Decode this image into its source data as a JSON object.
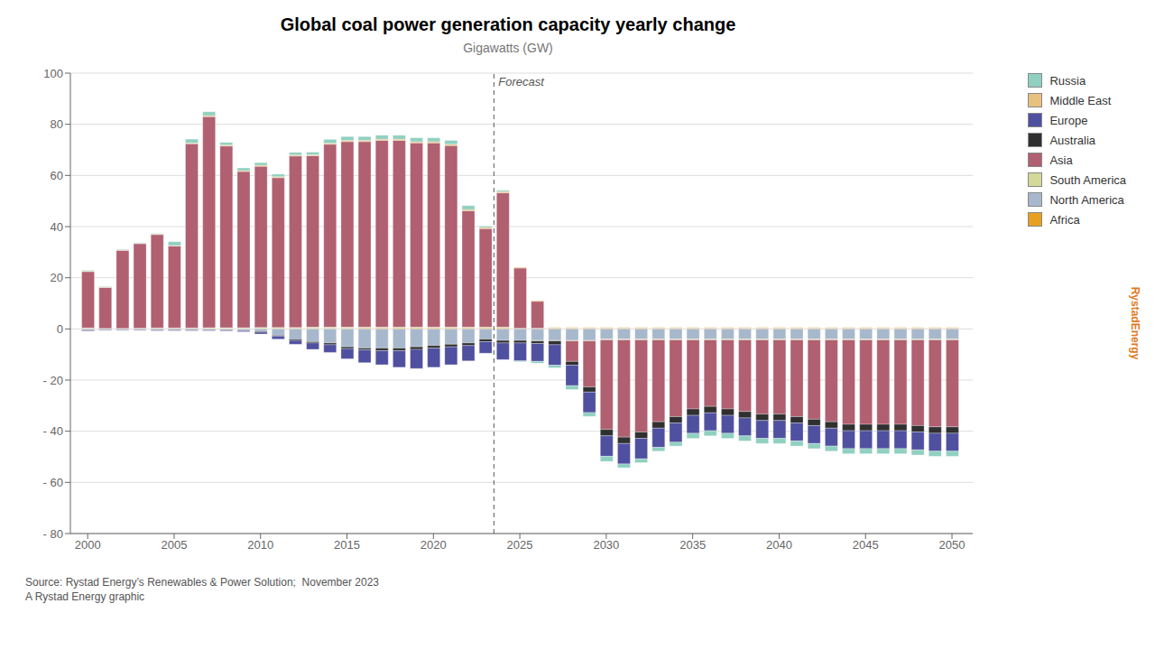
{
  "chart_data": {
    "type": "bar",
    "stacked": true,
    "title": "Global coal power generation capacity yearly change",
    "subtitle": "Gigawatts (GW)",
    "source": "Source: Rystad Energy’s Renewables & Power Solution;  November 2023\nA Rystad Energy graphic",
    "watermark": "RystadEnergy",
    "annotations": [
      {
        "text": "Forecast",
        "x": 2023.5
      }
    ],
    "x": [
      2000,
      2001,
      2002,
      2003,
      2004,
      2005,
      2006,
      2007,
      2008,
      2009,
      2010,
      2011,
      2012,
      2013,
      2014,
      2015,
      2016,
      2017,
      2018,
      2019,
      2020,
      2021,
      2022,
      2023,
      2024,
      2025,
      2026,
      2027,
      2028,
      2029,
      2030,
      2031,
      2032,
      2033,
      2034,
      2035,
      2036,
      2037,
      2038,
      2039,
      2040,
      2041,
      2042,
      2043,
      2044,
      2045,
      2046,
      2047,
      2048,
      2049,
      2050
    ],
    "xlim": [
      1999.0,
      2051.2
    ],
    "xticks": [
      2000,
      2005,
      2010,
      2015,
      2020,
      2025,
      2030,
      2035,
      2040,
      2045,
      2050
    ],
    "ylim": [
      -80,
      100
    ],
    "yticks": [
      {
        "value": -80,
        "label": "- 80"
      },
      {
        "value": -60,
        "label": "- 60"
      },
      {
        "value": -40,
        "label": "- 40"
      },
      {
        "value": -20,
        "label": "- 20"
      },
      0,
      20,
      40,
      60,
      80,
      100
    ],
    "grid": true,
    "legend": "upper right",
    "series": [
      {
        "name": "Africa",
        "color": "#e8a020",
        "values": [
          0.2,
          0.1,
          0.1,
          0.2,
          0.2,
          0.2,
          0.2,
          0.3,
          0.3,
          0.3,
          0.3,
          0.3,
          0.3,
          0.3,
          0.3,
          0.3,
          0.4,
          0.4,
          0.4,
          0.4,
          0.4,
          0.4,
          0.4,
          0.4,
          0.4,
          0.3,
          0.3,
          0.3,
          0.3,
          0.3,
          0.3,
          0.3,
          0.3,
          0.3,
          0.3,
          0.3,
          0.3,
          0.3,
          0.3,
          0.3,
          0.3,
          0.3,
          0.3,
          0.3,
          0.3,
          0.3,
          0.3,
          0.3,
          0.3,
          0.3,
          0.3
        ]
      },
      {
        "name": "North America",
        "color": "#a8b8cc",
        "values": [
          -0.3,
          -0.2,
          -0.2,
          -0.2,
          -0.2,
          -0.2,
          -0.2,
          -0.2,
          -0.3,
          -0.5,
          -1.0,
          -2.5,
          -4.0,
          -5.0,
          -5.5,
          -7.0,
          -7.5,
          -7.5,
          -7.5,
          -7.0,
          -6.5,
          -6.0,
          -5.5,
          -4.0,
          -4.5,
          -4.5,
          -4.5,
          -4.5,
          -4.5,
          -4.5,
          -4.0,
          -4.0,
          -4.0,
          -4.0,
          -4.0,
          -4.0,
          -4.0,
          -4.0,
          -4.0,
          -4.0,
          -4.0,
          -4.0,
          -4.0,
          -4.0,
          -4.0,
          -4.0,
          -4.0,
          -4.0,
          -4.0,
          -4.0,
          -4.0
        ]
      },
      {
        "name": "South America",
        "color": "#d4d898",
        "values": [
          0.2,
          0.1,
          0.1,
          0.1,
          0.2,
          0.2,
          0.2,
          0.2,
          0.2,
          0.2,
          0.3,
          0.3,
          0.3,
          0.4,
          0.4,
          0.4,
          0.3,
          0.3,
          0.3,
          0.3,
          0.3,
          0.3,
          0.3,
          0.3,
          0.3,
          0.0,
          -0.2,
          -0.2,
          -0.2,
          -0.2,
          -0.3,
          -0.3,
          -0.3,
          -0.3,
          -0.3,
          -0.3,
          -0.3,
          -0.3,
          -0.3,
          -0.3,
          -0.3,
          -0.3,
          -0.3,
          -0.3,
          -0.3,
          -0.3,
          -0.3,
          -0.3,
          -0.3,
          -0.3,
          -0.3
        ]
      },
      {
        "name": "Asia",
        "color": "#b06070",
        "values": [
          22.0,
          16.0,
          30.5,
          33.0,
          36.5,
          32.0,
          72.0,
          82.5,
          71.0,
          61.0,
          63.0,
          58.5,
          67.0,
          67.0,
          71.5,
          72.5,
          72.5,
          73.0,
          73.0,
          72.0,
          72.0,
          71.0,
          45.5,
          38.5,
          52.5,
          23.5,
          10.5,
          0.0,
          -8.0,
          -18.0,
          -35.0,
          -38.0,
          -36.0,
          -32.0,
          -30.0,
          -27.0,
          -26.0,
          -27.0,
          -28.0,
          -29.0,
          -29.0,
          -30.0,
          -31.0,
          -32.0,
          -33.0,
          -33.0,
          -33.0,
          -33.0,
          -33.5,
          -34.0,
          -34.0
        ]
      },
      {
        "name": "Australia",
        "color": "#303030",
        "values": [
          -0.2,
          -0.2,
          -0.2,
          -0.2,
          -0.2,
          -0.2,
          -0.2,
          -0.2,
          -0.2,
          -0.2,
          -0.3,
          -0.3,
          -0.5,
          -0.5,
          -0.7,
          -0.7,
          -0.7,
          -1.0,
          -1.0,
          -1.0,
          -1.0,
          -1.0,
          -1.0,
          -1.0,
          -1.0,
          -1.0,
          -1.0,
          -1.5,
          -1.5,
          -2.0,
          -2.5,
          -2.5,
          -2.5,
          -2.5,
          -2.5,
          -2.5,
          -2.5,
          -2.5,
          -2.5,
          -2.5,
          -2.5,
          -2.5,
          -2.5,
          -2.5,
          -2.5,
          -2.5,
          -2.5,
          -2.5,
          -2.5,
          -2.5,
          -2.5
        ]
      },
      {
        "name": "Europe",
        "color": "#5050a0",
        "values": [
          -0.3,
          -0.2,
          -0.2,
          -0.2,
          -0.3,
          -0.3,
          -0.3,
          -0.3,
          -0.3,
          -0.4,
          -0.7,
          -1.2,
          -1.5,
          -2.5,
          -3.0,
          -4.0,
          -5.0,
          -5.5,
          -6.5,
          -7.5,
          -7.5,
          -7.0,
          -6.0,
          -4.5,
          -6.5,
          -7.0,
          -7.0,
          -8.0,
          -8.0,
          -8.0,
          -8.0,
          -8.0,
          -8.0,
          -7.5,
          -7.5,
          -7.0,
          -7.0,
          -7.0,
          -7.0,
          -7.0,
          -7.0,
          -7.0,
          -7.0,
          -7.0,
          -7.0,
          -7.0,
          -7.0,
          -7.0,
          -7.0,
          -7.0,
          -7.0
        ]
      },
      {
        "name": "Middle East",
        "color": "#e8c080",
        "values": [
          0.2,
          0.2,
          0.2,
          0.2,
          0.2,
          0.2,
          0.3,
          0.4,
          0.4,
          0.4,
          0.4,
          0.4,
          0.4,
          0.4,
          0.4,
          0.5,
          0.5,
          0.5,
          0.5,
          0.5,
          0.5,
          0.5,
          0.5,
          0.5,
          0.5,
          0.3,
          0.3,
          0.3,
          0.3,
          0.3,
          0.3,
          0.3,
          0.3,
          0.3,
          0.3,
          0.3,
          0.3,
          0.3,
          0.3,
          0.3,
          0.3,
          0.3,
          0.3,
          0.3,
          0.3,
          0.3,
          0.3,
          0.3,
          0.3,
          0.3,
          0.3
        ]
      },
      {
        "name": "Russia",
        "color": "#90d0c0",
        "values": [
          0.3,
          0.2,
          0.2,
          0.2,
          0.2,
          1.5,
          1.5,
          1.5,
          1.0,
          1.0,
          1.0,
          1.0,
          1.0,
          1.0,
          1.5,
          1.5,
          1.5,
          1.5,
          1.5,
          1.5,
          1.5,
          1.5,
          1.5,
          0.5,
          0.5,
          -0.3,
          -0.7,
          -1.0,
          -1.5,
          -1.5,
          -2.0,
          -1.5,
          -1.5,
          -1.5,
          -1.5,
          -2.0,
          -2.0,
          -2.0,
          -2.0,
          -2.0,
          -2.0,
          -2.0,
          -2.0,
          -2.0,
          -2.0,
          -2.0,
          -2.0,
          -2.0,
          -2.0,
          -2.0,
          -2.0
        ]
      }
    ]
  }
}
